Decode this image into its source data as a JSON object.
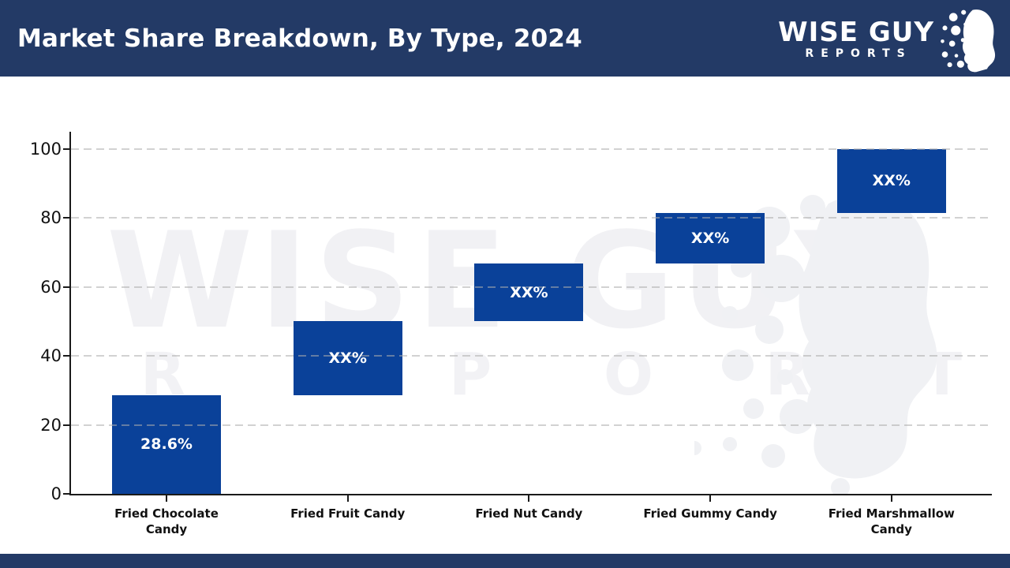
{
  "header": {
    "title": "Market Share Breakdown, By Type, 2024",
    "logo": {
      "line1": "WISE GUY",
      "line2": "REPORTS",
      "icon": "dotted-head-profile-icon"
    }
  },
  "watermark": {
    "line1": "WISE GUY",
    "line2": "R E P O R T S",
    "icon": "dotted-head-profile-watermark"
  },
  "footer": {},
  "colors": {
    "header_bg": "#233a66",
    "footer_bg": "#233a66",
    "bar": "#0a4199",
    "bar_label_text": "#ffffff",
    "gridline": "#d9d9d9",
    "watermark": "#f1f1f4",
    "axis": "#1a1a1a",
    "tick_text": "#111111"
  },
  "chart_data": {
    "type": "bar",
    "subtype": "waterfall",
    "title": "Market Share Breakdown, By Type, 2024",
    "categories": [
      "Fried Chocolate Candy",
      "Fried Fruit Candy",
      "Fried Nut Candy",
      "Fried Gummy Candy",
      "Fried Marshmallow Candy"
    ],
    "series": [
      {
        "name": "Market Share",
        "segments": [
          {
            "category": "Fried Chocolate Candy",
            "start": 0,
            "end": 28.6,
            "label": "28.6%"
          },
          {
            "category": "Fried Fruit Candy",
            "start": 28.6,
            "end": 50,
            "label": "XX%"
          },
          {
            "category": "Fried Nut Candy",
            "start": 50,
            "end": 66.7,
            "label": "XX%"
          },
          {
            "category": "Fried Gummy Candy",
            "start": 66.7,
            "end": 81.3,
            "label": "XX%"
          },
          {
            "category": "Fried Marshmallow Candy",
            "start": 81.3,
            "end": 100,
            "label": "XX%"
          }
        ]
      }
    ],
    "xlabel": "",
    "ylabel": "",
    "ylim": [
      0,
      105
    ],
    "yticks": [
      0,
      20,
      40,
      60,
      80,
      100
    ],
    "grid": true,
    "gridstyle": "dashed",
    "legend": false
  }
}
